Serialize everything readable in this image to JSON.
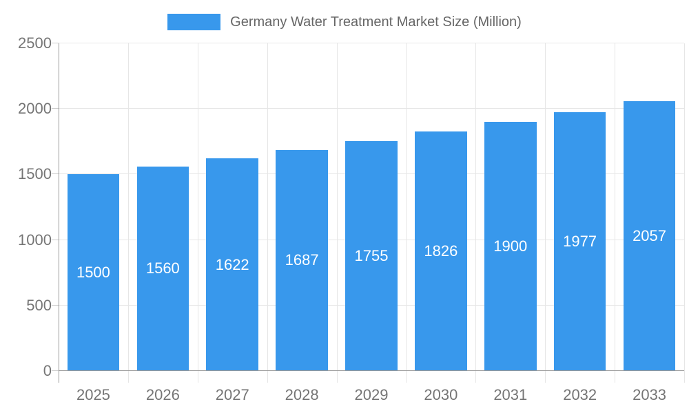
{
  "chart_data": {
    "type": "bar",
    "title": "Germany Water Treatment Market Size (Million)",
    "categories": [
      "2025",
      "2026",
      "2027",
      "2028",
      "2029",
      "2030",
      "2031",
      "2032",
      "2033"
    ],
    "series": [
      {
        "name": "Germany Water Treatment Market Size (Million)",
        "values": [
          1500,
          1560,
          1622,
          1687,
          1755,
          1826,
          1900,
          1977,
          2057
        ]
      }
    ],
    "xlabel": "",
    "ylabel": "",
    "ylim": [
      0,
      2500
    ],
    "yticks": [
      0,
      500,
      1000,
      1500,
      2000,
      2500
    ],
    "grid": true,
    "legend_position": "top-center",
    "bar_label_position": "inside-middle",
    "colors": {
      "bar": "#3898EC",
      "grid": "#E6E6E6",
      "axis": "#999999",
      "tick": "#CCCCCC",
      "tick_label": "#757575",
      "title": "#666666",
      "bar_label": "#FFFFFF",
      "background": "#FFFFFF"
    }
  }
}
